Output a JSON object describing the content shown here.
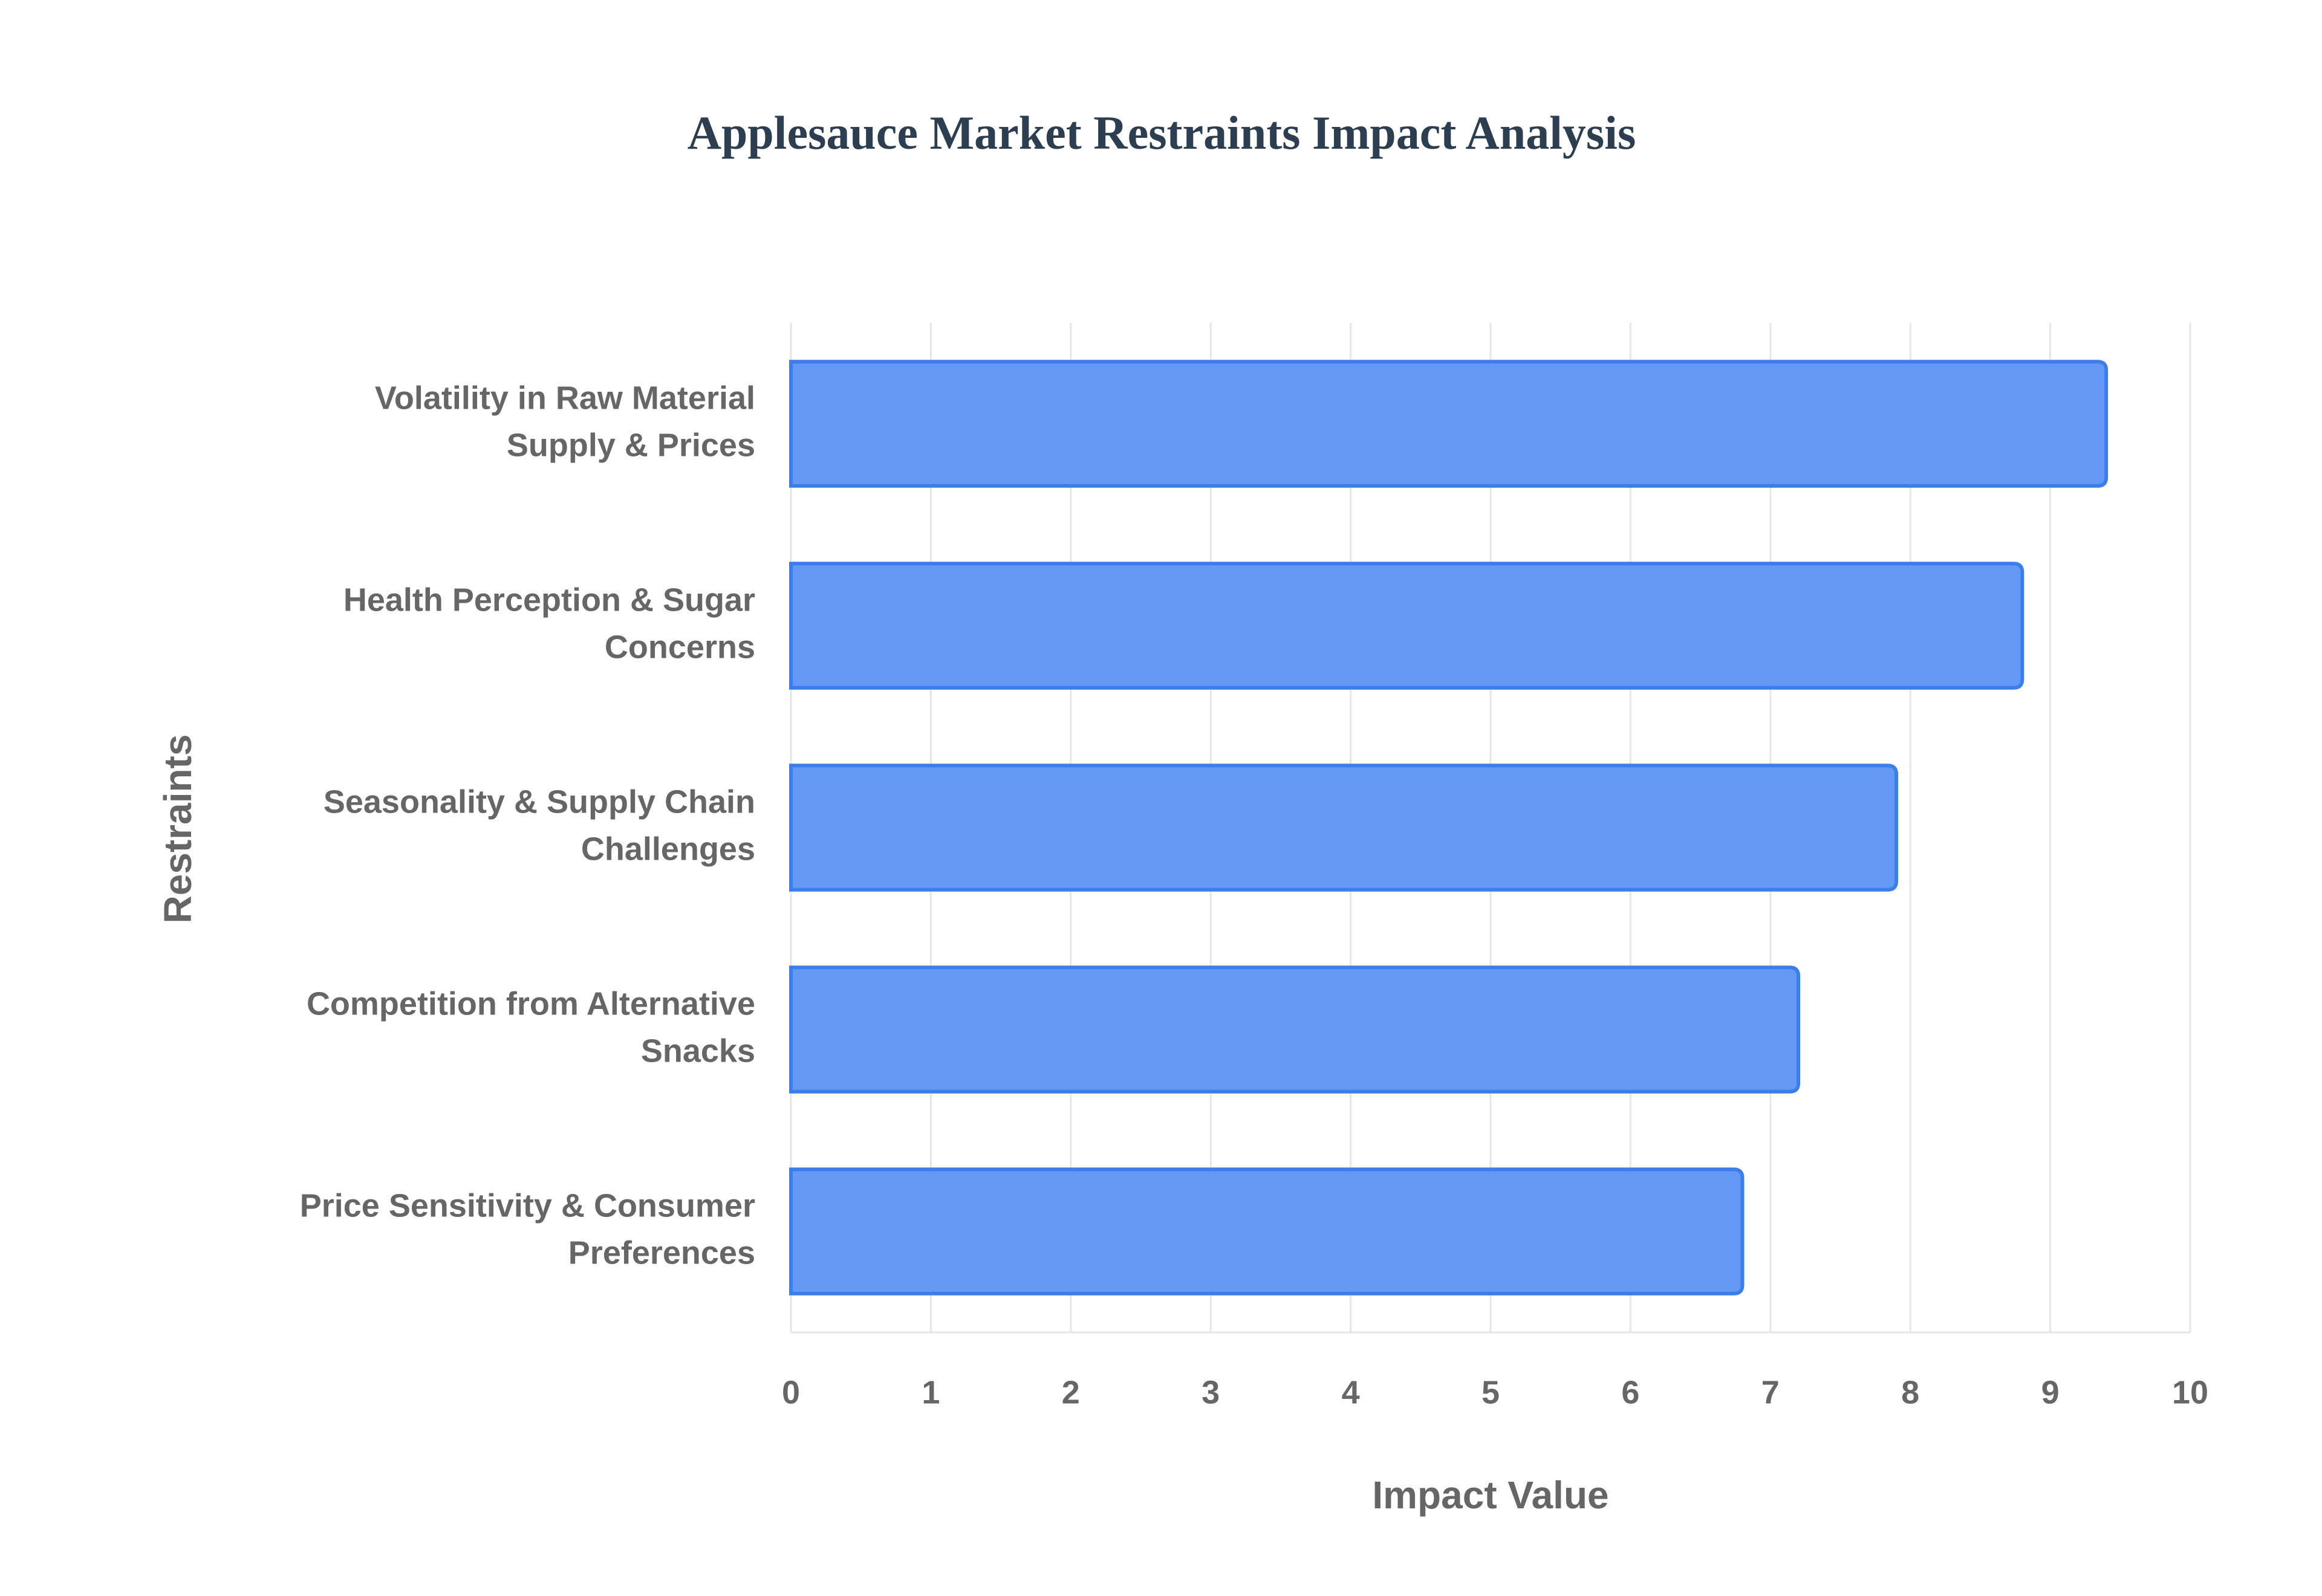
{
  "chart_data": {
    "type": "bar",
    "orientation": "horizontal",
    "title": "Applesauce Market Restraints Impact Analysis",
    "x_label": "Impact Value",
    "y_label": "Restraints",
    "categories": [
      [
        "Volatility in Raw Material",
        "Supply & Prices"
      ],
      [
        "Health Perception & Sugar",
        "Concerns"
      ],
      [
        "Seasonality & Supply Chain",
        "Challenges"
      ],
      [
        "Competition from Alternative",
        "Snacks"
      ],
      [
        "Price Sensitivity & Consumer",
        "Preferences"
      ]
    ],
    "values": [
      9.4,
      8.8,
      7.9,
      7.2,
      6.8
    ],
    "color": "#6399f5",
    "edge_color": "#3b7de9",
    "xlim": [
      0,
      10
    ],
    "xticks": [
      0,
      1,
      2,
      3,
      4,
      5,
      6,
      7,
      8,
      9,
      10
    ],
    "grid": true
  }
}
